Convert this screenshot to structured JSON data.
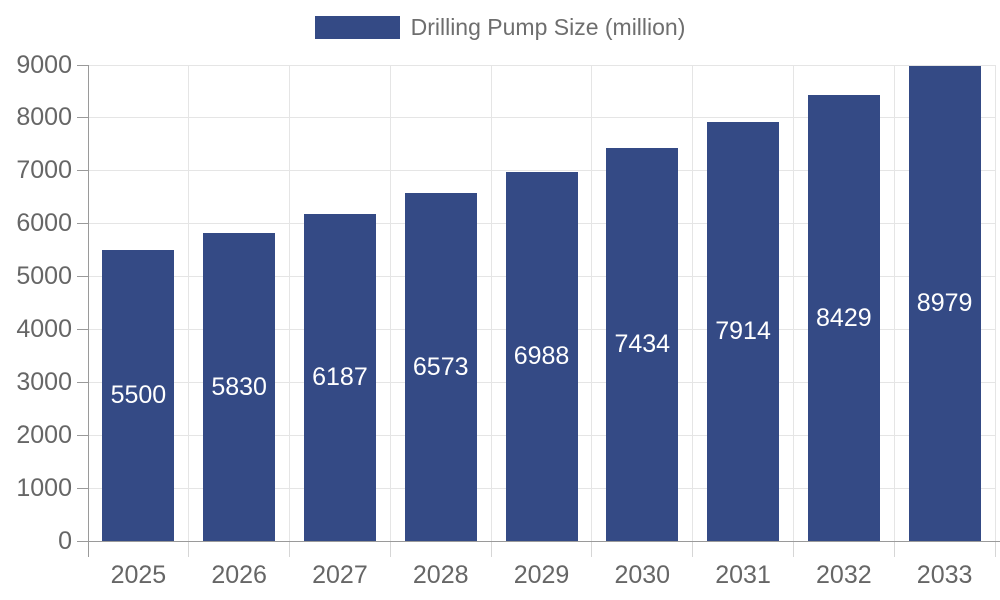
{
  "chart_data": {
    "type": "bar",
    "legend": "Drilling Pump Size (million)",
    "categories": [
      "2025",
      "2026",
      "2027",
      "2028",
      "2029",
      "2030",
      "2031",
      "2032",
      "2033"
    ],
    "values": [
      5500,
      5830,
      6187,
      6573,
      6988,
      7434,
      7914,
      8429,
      8979
    ],
    "value_labels": [
      "5500",
      "5830",
      "6187",
      "6573",
      "6988",
      "7434",
      "7914",
      "8429",
      "8979"
    ],
    "ylim": [
      0,
      9000
    ],
    "ytick_step": 1000,
    "grid": true,
    "legend_position": "top-center",
    "value_label_placement": "inside-center",
    "colors": {
      "bar": "#344a85",
      "value_label": "#ffffff",
      "grid": "#e5e5e5",
      "axis": "#9a9a9a",
      "minor_tick": "#d6d6d6",
      "tick_label": "#666666",
      "legend_text": "#6e6e6e"
    }
  }
}
